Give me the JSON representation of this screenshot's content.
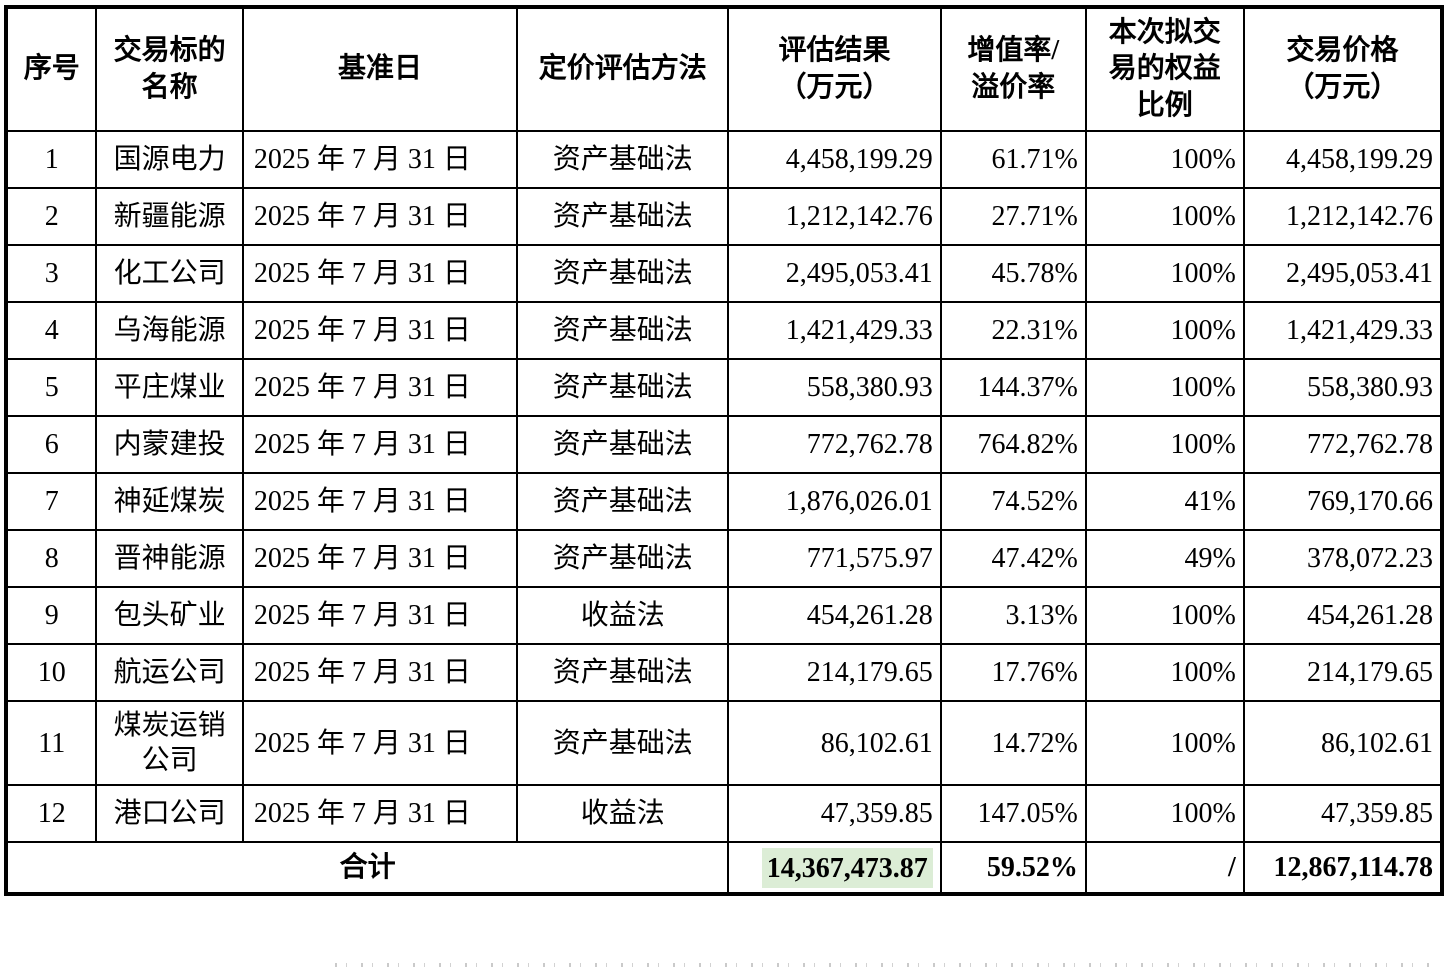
{
  "table": {
    "headers": [
      "序号",
      "交易标的\n名称",
      "基准日",
      "定价评估方法",
      "评估结果\n（万元）",
      "增值率/\n溢价率",
      "本次拟交\n易的权益\n比例",
      "交易价格\n（万元）"
    ],
    "rows": [
      [
        "1",
        "国源电力",
        "2025 年 7 月 31 日",
        "资产基础法",
        "4,458,199.29",
        "61.71%",
        "100%",
        "4,458,199.29"
      ],
      [
        "2",
        "新疆能源",
        "2025 年 7 月 31 日",
        "资产基础法",
        "1,212,142.76",
        "27.71%",
        "100%",
        "1,212,142.76"
      ],
      [
        "3",
        "化工公司",
        "2025 年 7 月 31 日",
        "资产基础法",
        "2,495,053.41",
        "45.78%",
        "100%",
        "2,495,053.41"
      ],
      [
        "4",
        "乌海能源",
        "2025 年 7 月 31 日",
        "资产基础法",
        "1,421,429.33",
        "22.31%",
        "100%",
        "1,421,429.33"
      ],
      [
        "5",
        "平庄煤业",
        "2025 年 7 月 31 日",
        "资产基础法",
        "558,380.93",
        "144.37%",
        "100%",
        "558,380.93"
      ],
      [
        "6",
        "内蒙建投",
        "2025 年 7 月 31 日",
        "资产基础法",
        "772,762.78",
        "764.82%",
        "100%",
        "772,762.78"
      ],
      [
        "7",
        "神延煤炭",
        "2025 年 7 月 31 日",
        "资产基础法",
        "1,876,026.01",
        "74.52%",
        "41%",
        "769,170.66"
      ],
      [
        "8",
        "晋神能源",
        "2025 年 7 月 31 日",
        "资产基础法",
        "771,575.97",
        "47.42%",
        "49%",
        "378,072.23"
      ],
      [
        "9",
        "包头矿业",
        "2025 年 7 月 31 日",
        "收益法",
        "454,261.28",
        "3.13%",
        "100%",
        "454,261.28"
      ],
      [
        "10",
        "航运公司",
        "2025 年 7 月 31 日",
        "资产基础法",
        "214,179.65",
        "17.76%",
        "100%",
        "214,179.65"
      ],
      [
        "11",
        "煤炭运销\n公司",
        "2025 年 7 月 31 日",
        "资产基础法",
        "86,102.61",
        "14.72%",
        "100%",
        "86,102.61"
      ],
      [
        "12",
        "港口公司",
        "2025 年 7 月 31 日",
        "收益法",
        "47,359.85",
        "147.05%",
        "100%",
        "47,359.85"
      ]
    ],
    "total": {
      "label": "合计",
      "result": "14,367,473.87",
      "rate": "59.52%",
      "ratio": "/",
      "price": "12,867,114.78"
    },
    "highlight_color": "#dcedd6"
  }
}
